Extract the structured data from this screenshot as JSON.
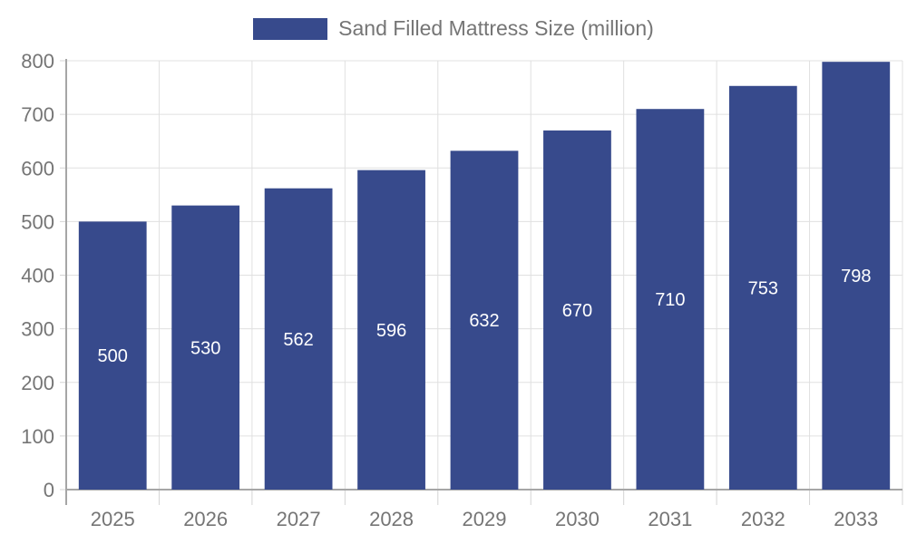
{
  "chart_data": {
    "type": "bar",
    "title": "Sand Filled Mattress Size (million)",
    "legend": "Sand Filled Mattress Size (million)",
    "legend_position": "top",
    "categories": [
      "2025",
      "2026",
      "2027",
      "2028",
      "2029",
      "2030",
      "2031",
      "2032",
      "2033"
    ],
    "values": [
      500,
      530,
      562,
      596,
      632,
      670,
      710,
      753,
      798
    ],
    "xlabel": "",
    "ylabel": "",
    "ylim": [
      0,
      800
    ],
    "yticks": [
      0,
      100,
      200,
      300,
      400,
      500,
      600,
      700,
      800
    ],
    "grid": true,
    "colors": {
      "bar": "#374a8c",
      "grid": "#e0e0e0",
      "axis": "#a6a6a6",
      "tick": "#d4d4d4",
      "text": "#757575",
      "value_label": "#ffffff",
      "background": "#ffffff"
    }
  }
}
